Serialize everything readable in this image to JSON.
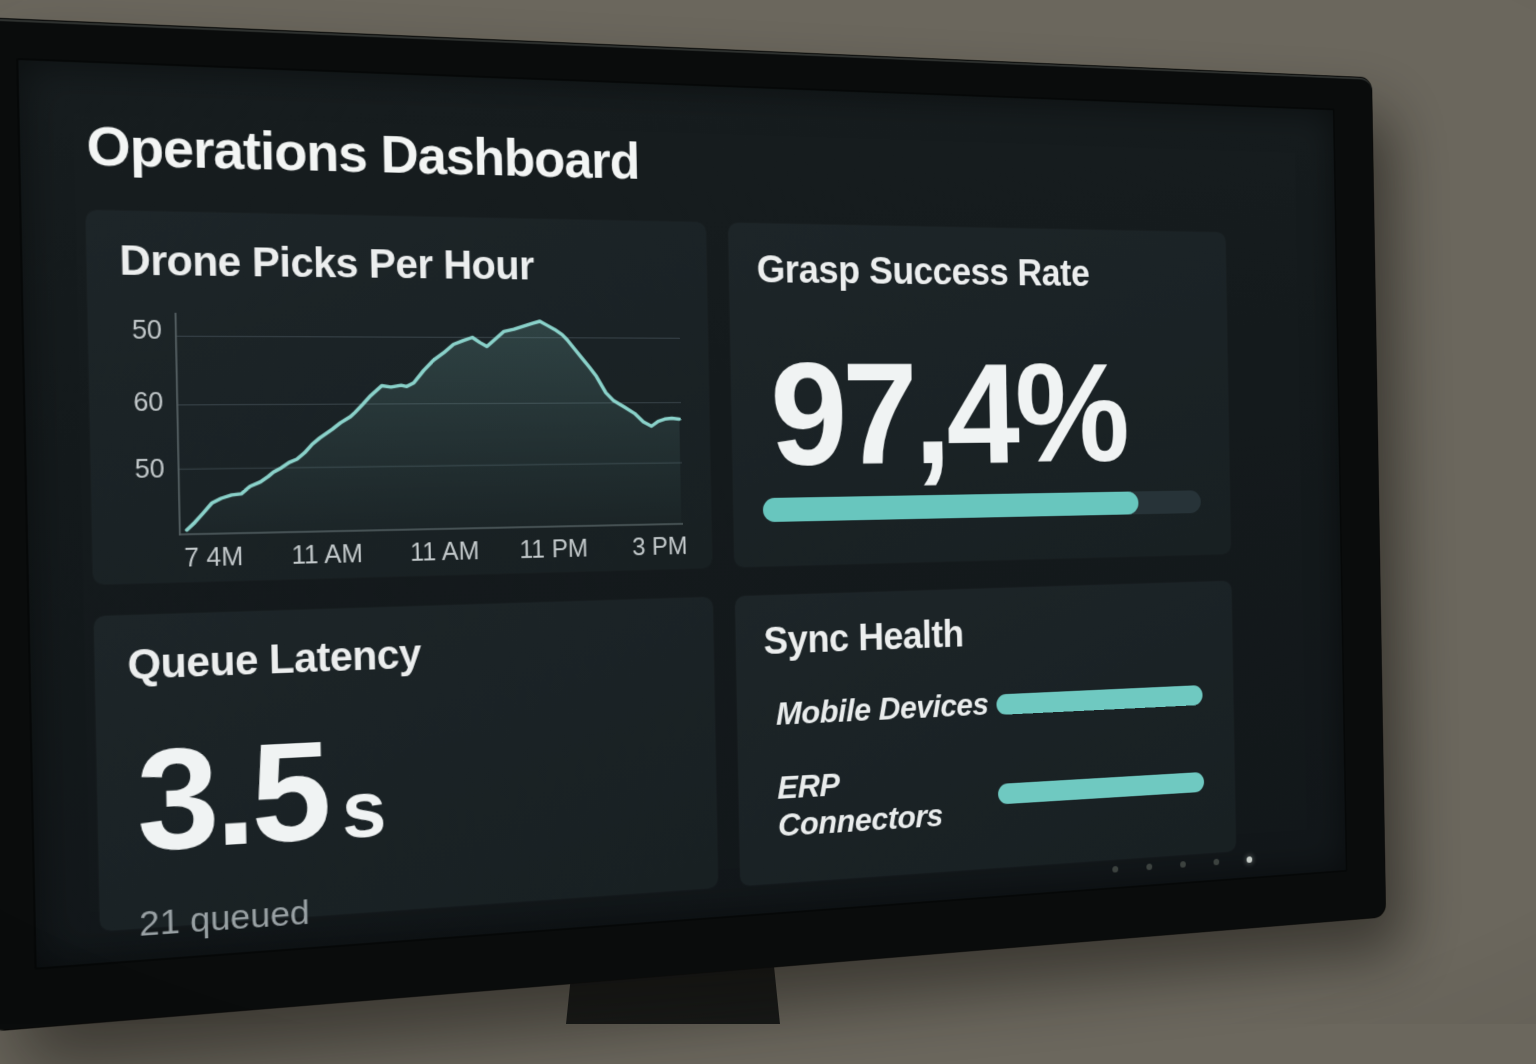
{
  "dashboard": {
    "title": "Operations Dashboard",
    "accent_color": "#6fc9c1",
    "screen_bg": "#141a1c",
    "panel_bg": "#1b2326"
  },
  "chart_data": {
    "type": "line",
    "title": "Drone Picks Per Hour",
    "x_tick_labels": [
      "7 4M",
      "11 AM",
      "11 AM",
      "11 PM",
      "3 PM"
    ],
    "x_tick_positions_pct": [
      2,
      28,
      51,
      73,
      95
    ],
    "y_tick_labels": [
      "50",
      "60",
      "50"
    ],
    "y_tick_positions_pct": [
      92,
      60,
      30
    ],
    "grid": true,
    "legend": false,
    "line_color": "#8ad2ca",
    "area_fill": true,
    "points_pct": [
      [
        1.5,
        1.5
      ],
      [
        3,
        5
      ],
      [
        4.5,
        9
      ],
      [
        6.3,
        14
      ],
      [
        8,
        16
      ],
      [
        10,
        17.5
      ],
      [
        11.8,
        18
      ],
      [
        13.5,
        21.5
      ],
      [
        15.5,
        23.5
      ],
      [
        17,
        26
      ],
      [
        18,
        28
      ],
      [
        19.5,
        30
      ],
      [
        21,
        32.5
      ],
      [
        22.5,
        34
      ],
      [
        24,
        37
      ],
      [
        25.5,
        41
      ],
      [
        27,
        44
      ],
      [
        29.4,
        48
      ],
      [
        31,
        51
      ],
      [
        33,
        54
      ],
      [
        33.9,
        56
      ],
      [
        35.5,
        60
      ],
      [
        37,
        64
      ],
      [
        39.2,
        68.7
      ],
      [
        41,
        68
      ],
      [
        43,
        68.9
      ],
      [
        44.1,
        68.3
      ],
      [
        45.5,
        70
      ],
      [
        47.5,
        76
      ],
      [
        49.5,
        81
      ],
      [
        51.5,
        84.5
      ],
      [
        53.5,
        88.6
      ],
      [
        55.5,
        90.5
      ],
      [
        57.3,
        92
      ],
      [
        58.8,
        89.5
      ],
      [
        60.2,
        87.6
      ],
      [
        61.8,
        91
      ],
      [
        63.7,
        95
      ],
      [
        65.7,
        96
      ],
      [
        67.6,
        97.5
      ],
      [
        69.5,
        99
      ],
      [
        71,
        100
      ],
      [
        72.5,
        98
      ],
      [
        74,
        96
      ],
      [
        75.5,
        93.5
      ],
      [
        76.5,
        91
      ],
      [
        78,
        86.5
      ],
      [
        79.5,
        82
      ],
      [
        81,
        77.5
      ],
      [
        82.4,
        73
      ],
      [
        84.3,
        65
      ],
      [
        85.9,
        61
      ],
      [
        88,
        58
      ],
      [
        90.2,
        54.7
      ],
      [
        92,
        50.5
      ],
      [
        93.7,
        48.3
      ],
      [
        95.1,
        50.7
      ],
      [
        96.5,
        51.8
      ],
      [
        98,
        52.2
      ],
      [
        99.6,
        51.7
      ]
    ]
  },
  "grasp_panel": {
    "title": "Grasp Success Rate",
    "value": "97,4%",
    "progress_pct": 85
  },
  "queue_panel": {
    "title": "Queue Latency",
    "value": "3.5",
    "unit": "s",
    "subtext": "21 queued"
  },
  "sync_panel": {
    "title": "Sync Health",
    "rows": [
      {
        "label": "Mobile Devices",
        "bar_pct": 100
      },
      {
        "label": "ERP Connectors",
        "bar_pct": 100
      }
    ]
  }
}
